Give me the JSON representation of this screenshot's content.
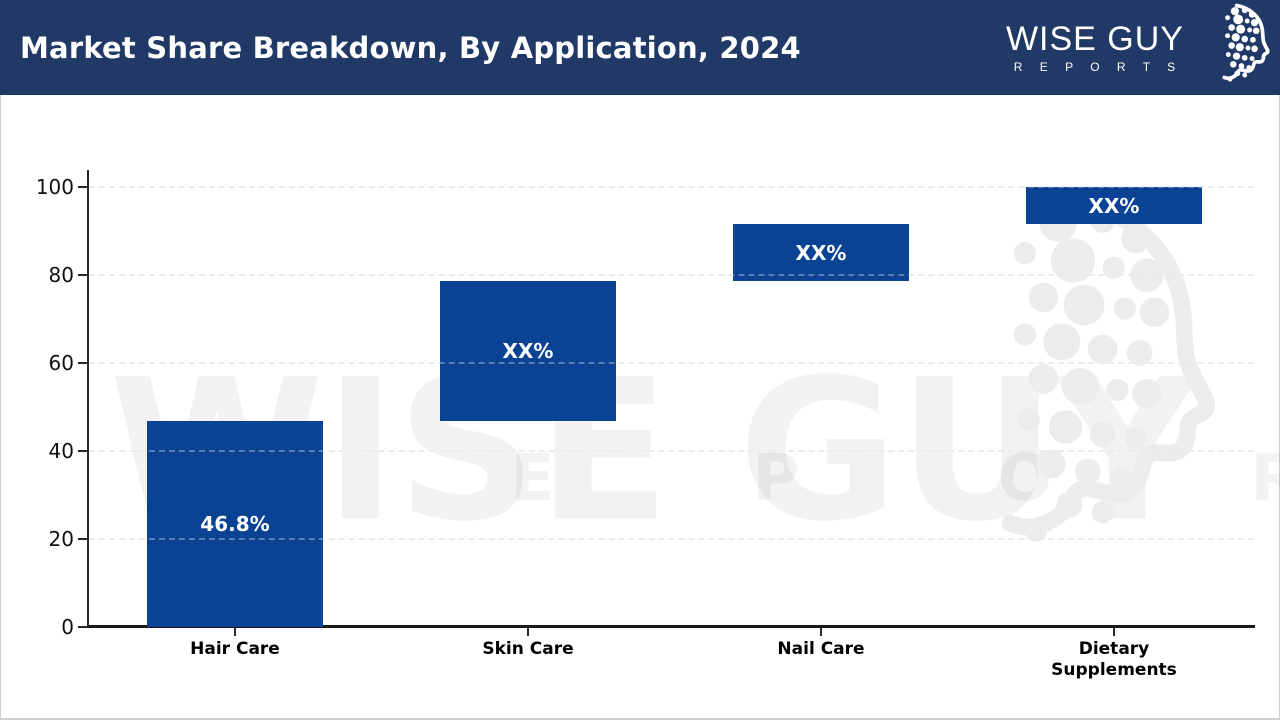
{
  "header": {
    "title": "Market Share Breakdown, By Application, 2024",
    "logo": {
      "wordmark": "WISE GUY",
      "subtext": "R E P O R T S",
      "face_icon": "dotted-profile-face"
    }
  },
  "watermark": {
    "wordmark": "WISE GUY",
    "subtext": "R E P O R T S",
    "face_icon": "dotted-profile-face"
  },
  "chart_data": {
    "type": "bar",
    "subtype": "waterfall-stacked-percentage",
    "title": "Market Share Breakdown, By Application, 2024",
    "categories": [
      "Hair Care",
      "Skin Care",
      "Nail Care",
      "Dietary Supplements"
    ],
    "series": [
      {
        "name": "Market share (%)",
        "segments": [
          {
            "category": "Hair Care",
            "start": 0,
            "end": 46.8,
            "value": 46.8,
            "label": "46.8%"
          },
          {
            "category": "Skin Care",
            "start": 46.8,
            "end": 78.6,
            "value": 31.8,
            "label": "XX%"
          },
          {
            "category": "Nail Care",
            "start": 78.6,
            "end": 91.5,
            "value": 12.9,
            "label": "XX%"
          },
          {
            "category": "Dietary Supplements",
            "start": 91.5,
            "end": 100,
            "value": 8.5,
            "label": "XX%"
          }
        ]
      }
    ],
    "bar_labels": [
      "46.8%",
      "XX%",
      "XX%",
      "XX%"
    ],
    "xlabel": "",
    "ylabel": "",
    "ylim": [
      0,
      100
    ],
    "yticks": [
      0,
      20,
      40,
      60,
      80,
      100
    ],
    "grid": {
      "axis": "y",
      "style": "dashed"
    },
    "legend": "none",
    "colors": {
      "bar": "#0a4394",
      "bar_label": "#ffffff",
      "grid": "#e2e2e2",
      "axis": "#262626",
      "header_bg": "#213966",
      "header_text": "#ffffff",
      "watermark": "#f0f0f0"
    }
  }
}
